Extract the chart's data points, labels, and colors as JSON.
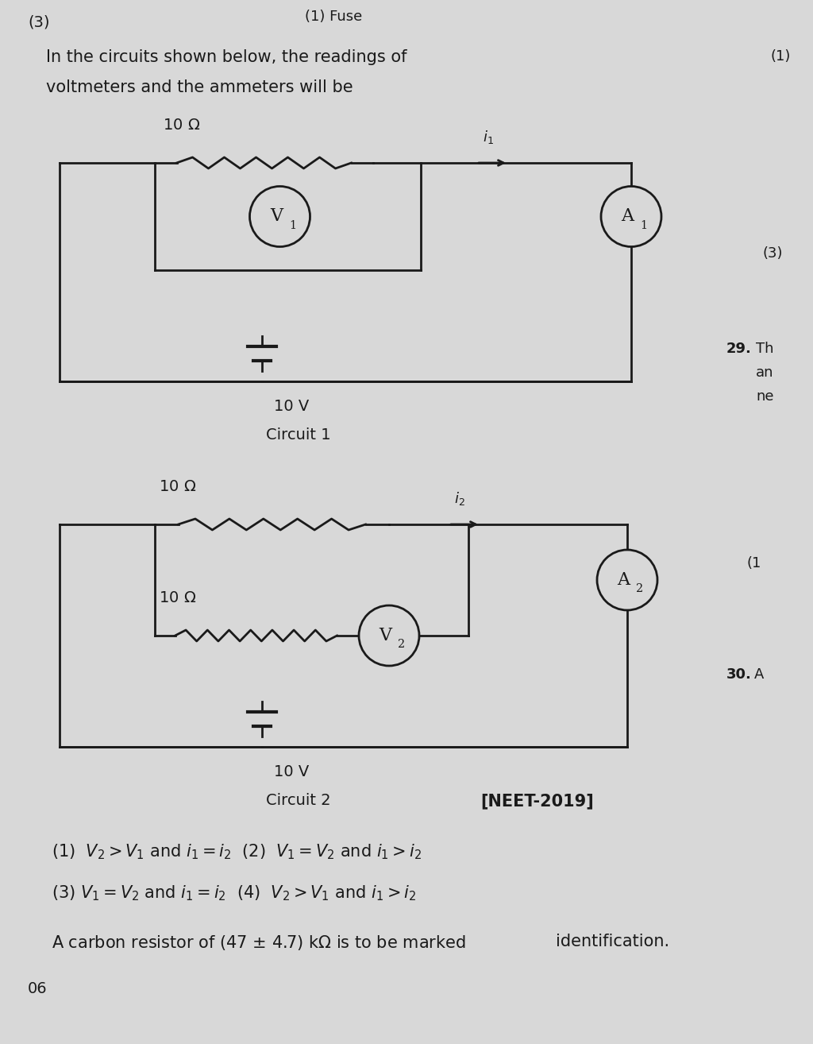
{
  "bg_color": "#d8d8d8",
  "line_color": "#1a1a1a",
  "title_line1": "In the circuits shown below, the readings of",
  "title_line2": "voltmeters and the ammeters will be",
  "top_left_text": "(3)",
  "top_center_text": "(1) Fuse",
  "side_right_1": "(1)",
  "side_right_3": "(3)",
  "side_29": "29.",
  "side_29a": "Th",
  "side_29b": "an",
  "side_29c": "ne",
  "side_1paren": "(1",
  "side_30": "30.",
  "side_30a": "A",
  "resistor_label1": "10 Ω",
  "resistor_label2": "10 Ω",
  "resistor_label3": "10 Ω",
  "voltage1": "10 V",
  "voltage2": "10 V",
  "circuit1_label": "Circuit 1",
  "circuit2_label": "Circuit 2",
  "neet_label": "[NEET-2019]",
  "i1_label": "i₁",
  "i2_label": "i₂",
  "opt1": "(1)  V₂ > V₁ and i₁ = i₂",
  "opt2": "(2)  V₁ = V₂ and i₁ > i₂",
  "opt3": "(3) V₁ = V₂ and i₁ = i₂",
  "opt4": "(4)  V₂ > V₁ and i₁ > i₂",
  "bottom_line": "A carbon resistor of (47 ± 4.7) kΩ is to be marked",
  "bottom_right": "identification.",
  "page_num": "06"
}
